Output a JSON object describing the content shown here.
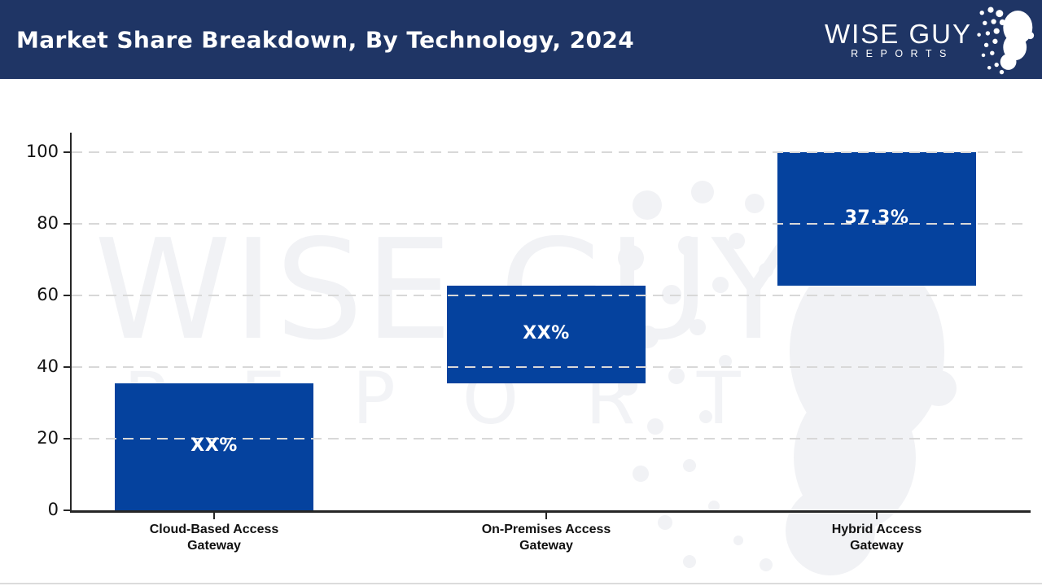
{
  "header": {
    "title": "Market Share Breakdown, By Technology, 2024",
    "background_color": "#1f3565",
    "logo": {
      "brand": "WISE GUY",
      "sub": "REPORTS"
    }
  },
  "watermark": {
    "line1": "WISE GUY",
    "line2": "REPORTS"
  },
  "chart_data": {
    "type": "bar",
    "subtype": "stacked_waterfall_percent",
    "title": "Market Share Breakdown, By Technology, 2024",
    "categories": [
      "Cloud-Based Access\nGateway",
      "On-Premises Access\nGateway",
      "Hybrid Access\nGateway"
    ],
    "segments": [
      {
        "category": "Cloud-Based Access Gateway",
        "start": 0,
        "end": 35.5,
        "value": 35.5,
        "value_label": "XX%"
      },
      {
        "category": "On-Premises Access Gateway",
        "start": 35.5,
        "end": 62.7,
        "value": 27.2,
        "value_label": "XX%"
      },
      {
        "category": "Hybrid Access Gateway",
        "start": 62.7,
        "end": 100,
        "value": 37.3,
        "value_label": "37.3%"
      }
    ],
    "xlabel": "",
    "ylabel": "",
    "ylim": [
      0,
      100
    ],
    "yticks": [
      0,
      20,
      40,
      60,
      80,
      100
    ],
    "grid": "horizontal-dashed",
    "legend": "none",
    "bar_color": "#05429e",
    "value_label_color": "#ffffff",
    "axis_color": "#262626",
    "gridline_color": "#d8d8d8"
  }
}
